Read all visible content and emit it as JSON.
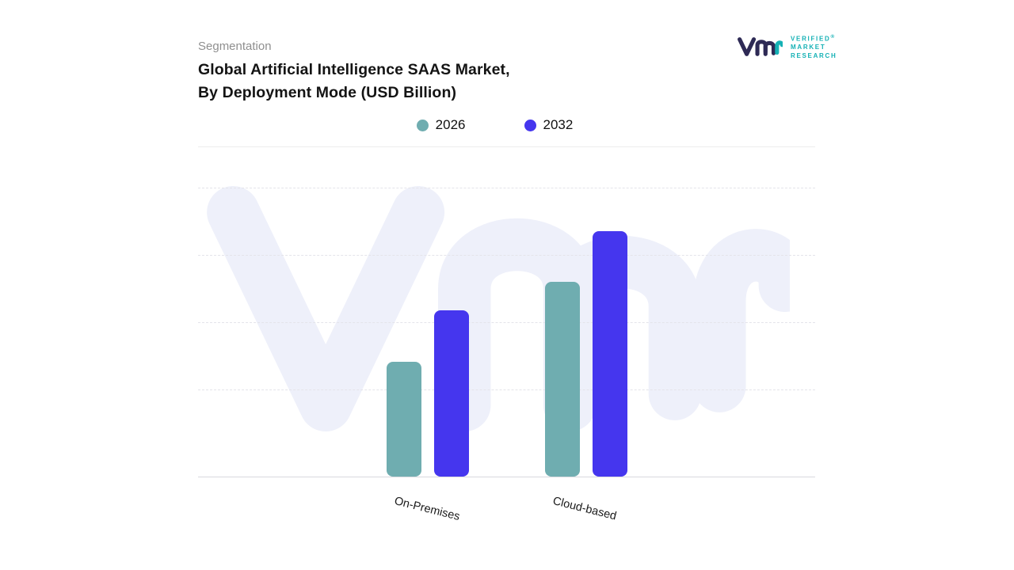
{
  "header": {
    "eyebrow": "Segmentation",
    "title_line1": "Global Artificial Intelligence SAAS Market,",
    "title_line2": "By Deployment Mode (USD Billion)"
  },
  "logo": {
    "brand_lines": [
      "VERIFIED",
      "MARKET",
      "RESEARCH"
    ],
    "registered_mark": "®",
    "brand_color": "#14b1b5",
    "mark_color": "#2e2a55"
  },
  "legend": [
    {
      "label": "2026",
      "color": "#6fadb0"
    },
    {
      "label": "2032",
      "color": "#4536ee"
    }
  ],
  "chart_data": {
    "type": "bar",
    "title": "Global Artificial Intelligence SAAS Market, By Deployment Mode (USD Billion)",
    "categories": [
      "On-Premises",
      "Cloud-based"
    ],
    "series": [
      {
        "name": "2026",
        "color": "#6fadb0",
        "values": [
          38.7,
          65.6
        ]
      },
      {
        "name": "2032",
        "color": "#4536ee",
        "values": [
          56.0,
          82.7
        ]
      }
    ],
    "xlabel": "",
    "ylabel": "",
    "ylim": [
      0,
      100
    ],
    "grid": "dashed-horizontal",
    "legend_position": "top-center",
    "note": "Y axis has no numeric tick labels in the image; values are estimated as percent of plot height"
  },
  "watermark": {
    "color": "#eef0fa"
  }
}
